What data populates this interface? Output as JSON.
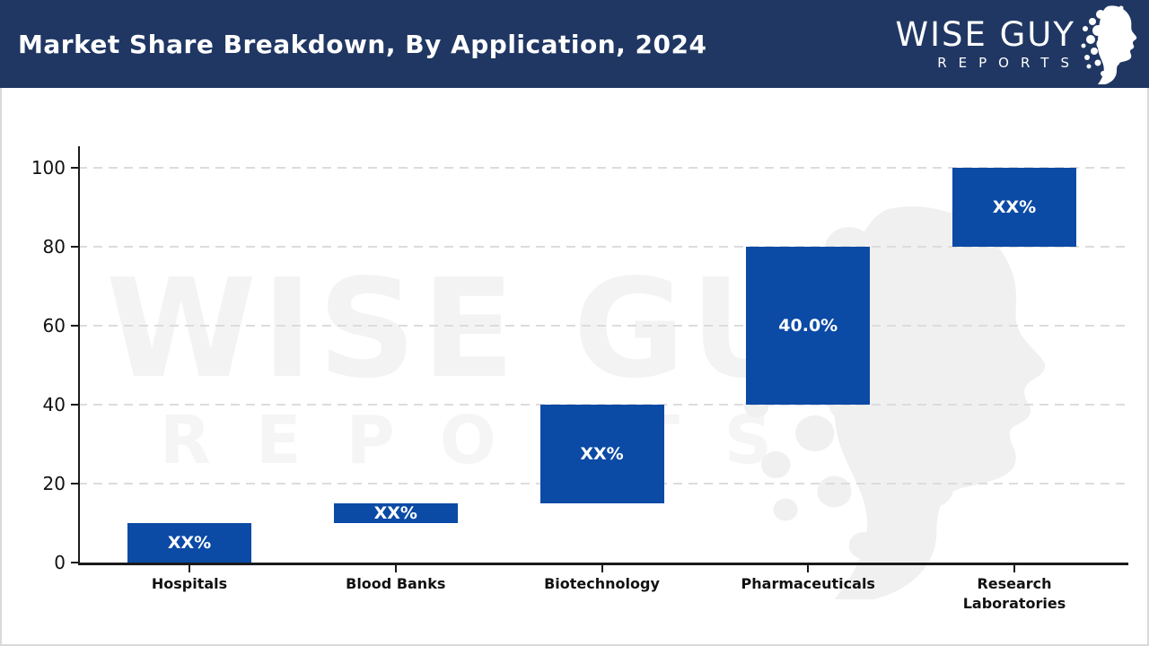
{
  "header": {
    "title": "Market Share Breakdown, By Application, 2024",
    "logo": {
      "brand": "WISE GUY",
      "sub": "REPORTS"
    }
  },
  "watermark": {
    "line1": "WISE GUY",
    "line2": "REPORTS"
  },
  "colors": {
    "header_bg": "#203763",
    "bar": "#0b4aa5",
    "grid": "#dcdcdc",
    "axis": "#1a1a1a",
    "watermark_text": "#f3f3f3",
    "watermark_face": "#f0f0f0"
  },
  "chart_data": {
    "type": "bar",
    "subtype": "waterfall",
    "title": "Market Share Breakdown, By Application, 2024",
    "categories": [
      "Hospitals",
      "Blood Banks",
      "Biotechnology",
      "Pharmaceuticals",
      "Research Laboratories"
    ],
    "segments": [
      {
        "category": "Hospitals",
        "start": 0,
        "end": 10,
        "label": "XX%"
      },
      {
        "category": "Blood Banks",
        "start": 10,
        "end": 15,
        "label": "XX%"
      },
      {
        "category": "Biotechnology",
        "start": 15,
        "end": 40,
        "label": "XX%"
      },
      {
        "category": "Pharmaceuticals",
        "start": 40,
        "end": 80,
        "label": "40.0%"
      },
      {
        "category": "Research Laboratories",
        "start": 80,
        "end": 100,
        "label": "XX%"
      }
    ],
    "yticks": [
      0,
      20,
      40,
      60,
      80,
      100
    ],
    "ylim": [
      0,
      105
    ],
    "xlabel": "",
    "ylabel": "",
    "grid": "horizontal-dashed",
    "legend": "none",
    "bar_color": "#0b4aa5"
  }
}
